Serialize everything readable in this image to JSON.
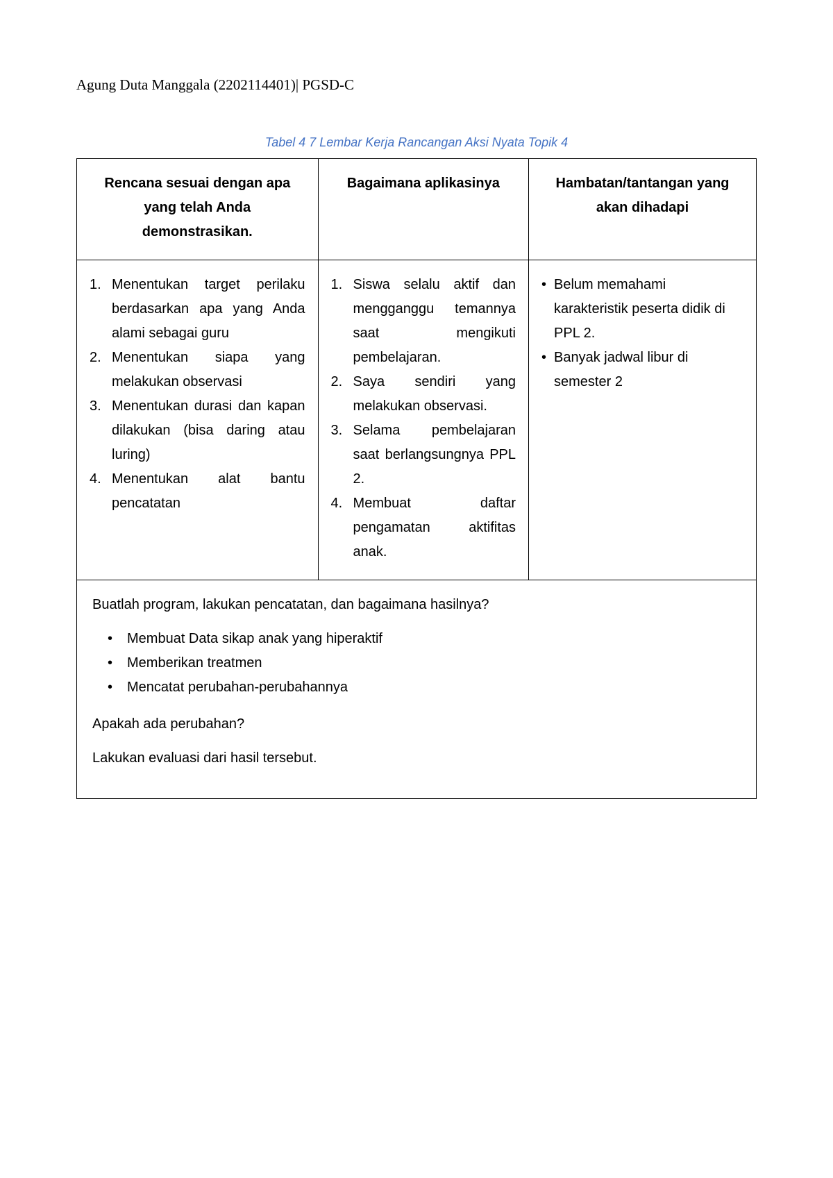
{
  "header": "Agung Duta Manggala (2202114401)| PGSD-C",
  "caption": "Tabel 4 7 Lembar Kerja Rancangan Aksi Nyata Topik 4",
  "columns": {
    "c1": "Rencana sesuai dengan apa yang telah Anda demonstrasikan.",
    "c2": "Bagaimana aplikasinya",
    "c3": "Hambatan/tantangan yang akan dihadapi"
  },
  "col1_items": [
    "Menentukan target perilaku berdasarkan apa yang Anda alami sebagai guru",
    "Menentukan siapa yang melakukan observasi",
    "Menentukan durasi dan kapan dilakukan (bisa daring atau luring)",
    "Menentukan alat bantu pencatatan"
  ],
  "col2_items": [
    "Siswa selalu aktif dan mengganggu temannya saat mengikuti pembelajaran.",
    "Saya sendiri yang melakukan observasi.",
    "Selama pembelajaran saat berlangsungnya PPL 2.",
    "Membuat daftar pengamatan aktifitas anak."
  ],
  "col3_items": [
    "Belum memahami karakteristik peserta didik di PPL 2.",
    "Banyak jadwal libur di semester 2"
  ],
  "bottom": {
    "q1": "Buatlah program, lakukan pencatatan, dan bagaimana hasilnya?",
    "bullets": [
      "Membuat Data sikap anak yang hiperaktif",
      "Memberikan treatmen",
      "Mencatat perubahan-perubahannya"
    ],
    "q2": "Apakah ada perubahan?",
    "q3": "Lakukan evaluasi dari hasil tersebut."
  },
  "colors": {
    "caption": "#4472c4",
    "text": "#000000",
    "border": "#000000",
    "background": "#ffffff"
  }
}
